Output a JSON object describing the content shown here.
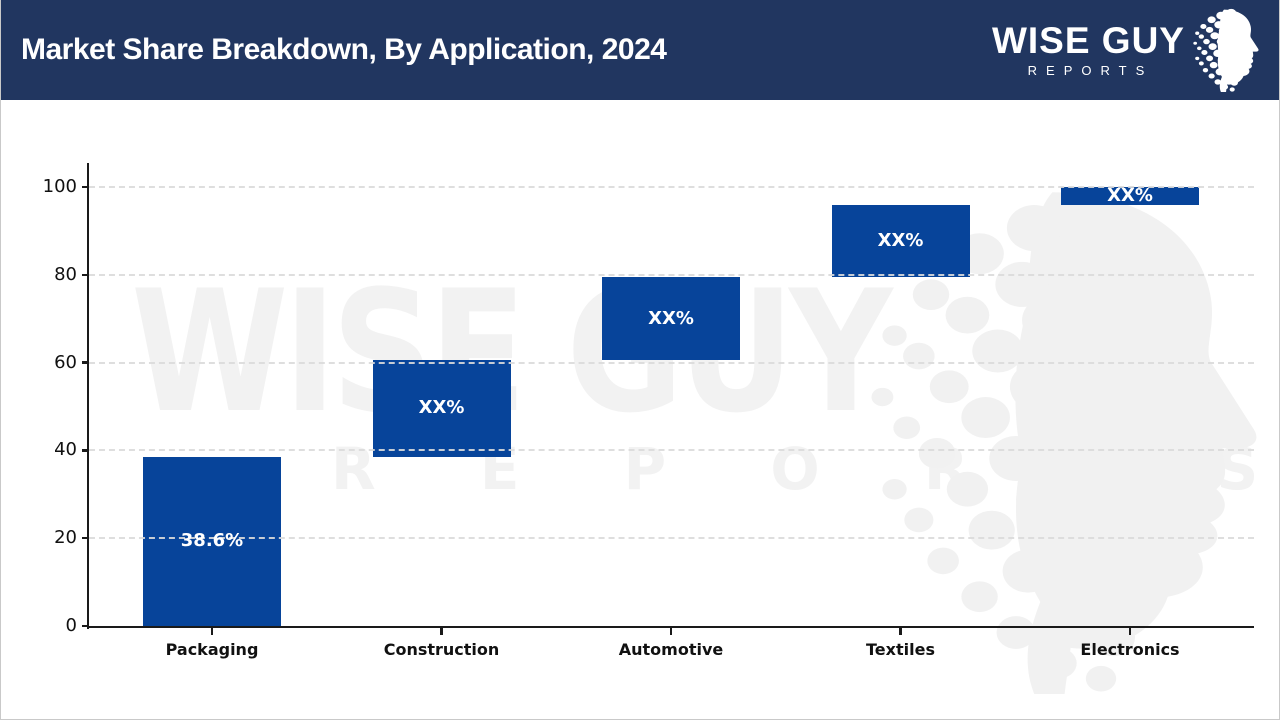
{
  "header": {
    "title": "Market Share Breakdown, By Application, 2024",
    "logo": {
      "line1": "WISE GUY",
      "line2": "REPORTS"
    }
  },
  "watermark": {
    "line1": "WISE GUY",
    "line2": "R E P O R T S"
  },
  "chart_data": {
    "type": "bar",
    "subtype": "waterfall",
    "title": "Market Share Breakdown, By Application, 2024",
    "categories": [
      "Packaging",
      "Construction",
      "Automotive",
      "Textiles",
      "Electronics"
    ],
    "segments": [
      {
        "category": "Packaging",
        "start": 0,
        "end": 38.6,
        "label": "38.6%"
      },
      {
        "category": "Construction",
        "start": 38.6,
        "end": 60.5,
        "label": "XX%"
      },
      {
        "category": "Automotive",
        "start": 60.5,
        "end": 79.5,
        "label": "XX%"
      },
      {
        "category": "Textiles",
        "start": 79.5,
        "end": 96.0,
        "label": "XX%"
      },
      {
        "category": "Electronics",
        "start": 96.0,
        "end": 100.0,
        "label": "XX%"
      }
    ],
    "yticks": [
      0,
      20,
      40,
      60,
      80,
      100
    ],
    "ylim": [
      0,
      105
    ],
    "xlabel": "",
    "ylabel": "",
    "grid": "horizontal-dashed-over-bars",
    "legend": "none",
    "bar_color": "#07449a",
    "bar_label_color": "#ffffff"
  },
  "colors": {
    "header_bg": "#213660",
    "axis": "#1a1a1a",
    "gridline": "#dbdbdb",
    "watermark": "#f2f2f2",
    "page_border": "#c9c9c9"
  }
}
